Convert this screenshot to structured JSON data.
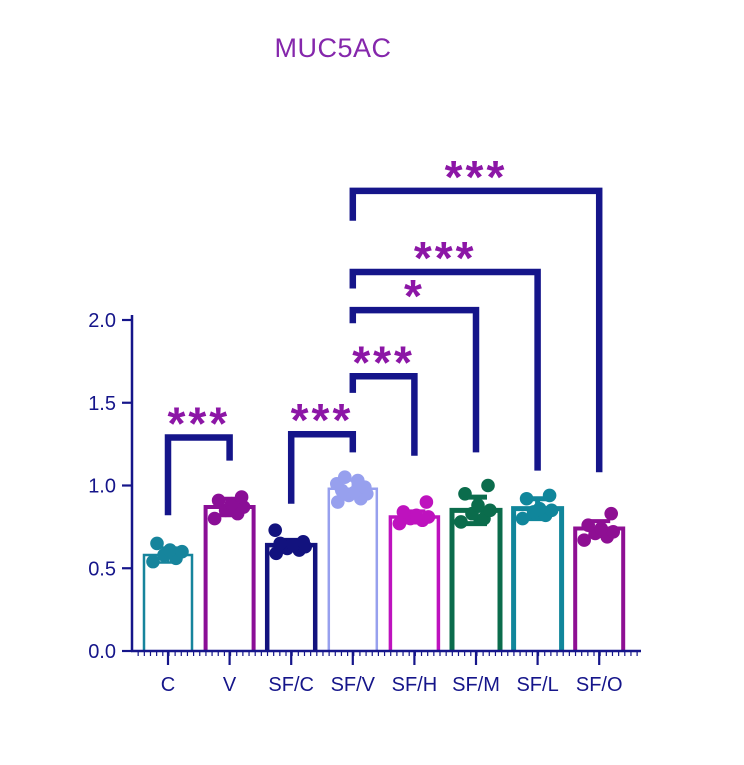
{
  "chart_data": {
    "type": "bar",
    "title": "MUC5AC",
    "xlabel": "",
    "ylabel": "",
    "ylim": [
      0,
      2.0
    ],
    "yticks": [
      0,
      0.5,
      1.0,
      1.5,
      2.0
    ],
    "ytick_labels": [
      "0.0",
      "0.5",
      "1.0",
      "1.5",
      "2.0"
    ],
    "grid": false,
    "legend": "none",
    "colors": {
      "axis": "#15158A",
      "title": "#8527AC",
      "significance": "#8C16A6",
      "bar_fill": "#FFFFFF"
    },
    "categories": [
      "C",
      "V",
      "SF/C",
      "SF/V",
      "SF/H",
      "SF/M",
      "SF/L",
      "SF/O"
    ],
    "bars": [
      {
        "label": "C",
        "mean": 0.58,
        "sd": 0.045,
        "color": "#16849C",
        "stroke_width": 2.5,
        "points": [
          0.54,
          0.56,
          0.58,
          0.6,
          0.61,
          0.65
        ]
      },
      {
        "label": "V",
        "mean": 0.87,
        "sd": 0.05,
        "color": "#8A0E96",
        "stroke_width": 4,
        "points": [
          0.8,
          0.83,
          0.85,
          0.87,
          0.89,
          0.91,
          0.93
        ]
      },
      {
        "label": "SF/C",
        "mean": 0.64,
        "sd": 0.03,
        "color": "#12127E",
        "stroke_width": 4.5,
        "points": [
          0.59,
          0.61,
          0.62,
          0.63,
          0.64,
          0.65,
          0.66,
          0.73
        ]
      },
      {
        "label": "SF/V",
        "mean": 0.98,
        "sd": 0.05,
        "color": "#97A0EE",
        "stroke_width": 2.5,
        "points": [
          0.9,
          0.92,
          0.94,
          0.95,
          0.96,
          0.97,
          0.99,
          1.01,
          1.03,
          1.05
        ]
      },
      {
        "label": "SF/H",
        "mean": 0.81,
        "sd": 0.035,
        "color": "#BE12BE",
        "stroke_width": 3.5,
        "points": [
          0.77,
          0.79,
          0.8,
          0.81,
          0.82,
          0.84,
          0.9
        ]
      },
      {
        "label": "SF/M",
        "mean": 0.85,
        "sd": 0.08,
        "color": "#0B6C4C",
        "stroke_width": 5,
        "points": [
          0.78,
          0.8,
          0.83,
          0.85,
          0.88,
          0.95,
          1.0
        ]
      },
      {
        "label": "SF/L",
        "mean": 0.86,
        "sd": 0.06,
        "color": "#10869B",
        "stroke_width": 5,
        "points": [
          0.8,
          0.82,
          0.84,
          0.85,
          0.86,
          0.92,
          0.94
        ]
      },
      {
        "label": "SF/O",
        "mean": 0.74,
        "sd": 0.045,
        "color": "#8E0F93",
        "stroke_width": 4,
        "points": [
          0.67,
          0.69,
          0.71,
          0.72,
          0.74,
          0.76,
          0.83
        ]
      }
    ],
    "significance_brackets": [
      {
        "from": "C",
        "to": "V",
        "label": "***",
        "level": 1.29,
        "from_drop": 0.82,
        "to_drop": 1.15
      },
      {
        "from": "SF/C",
        "to": "SF/V",
        "label": "***",
        "level": 1.31,
        "from_drop": 0.89,
        "to_drop": 1.2
      },
      {
        "from": "SF/V",
        "to": "SF/H",
        "label": "***",
        "level": 1.66,
        "from_drop": 1.56,
        "to_drop": 1.18
      },
      {
        "from": "SF/V",
        "to": "SF/M",
        "label": "*",
        "level": 2.06,
        "from_drop": 1.98,
        "to_drop": 1.2
      },
      {
        "from": "SF/V",
        "to": "SF/L",
        "label": "***",
        "level": 2.29,
        "from_drop": 2.19,
        "to_drop": 1.09
      },
      {
        "from": "SF/V",
        "to": "SF/O",
        "label": "***",
        "level": 2.78,
        "from_drop": 2.6,
        "to_drop": 1.08
      }
    ]
  }
}
